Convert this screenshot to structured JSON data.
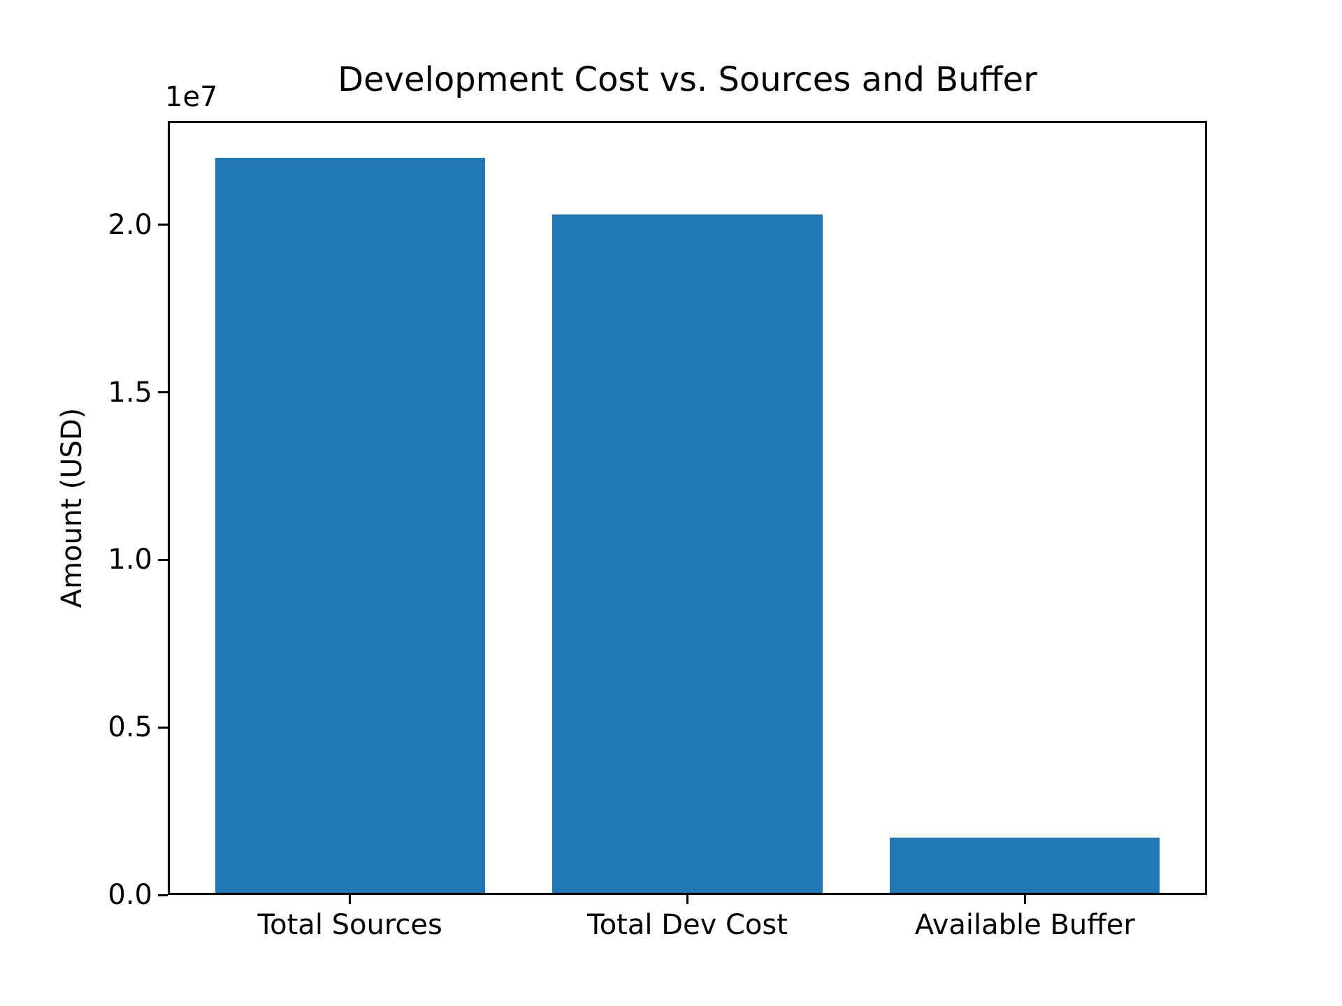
{
  "chart_data": {
    "type": "bar",
    "title": "Development Cost vs. Sources and Buffer",
    "xlabel": "",
    "ylabel": "Amount (USD)",
    "offset_text": "1e7",
    "categories": [
      "Total Sources",
      "Total Dev Cost",
      "Available Buffer"
    ],
    "values": [
      22000000,
      20300000,
      1700000
    ],
    "bar_color": "#1f77b4",
    "text_color": "#000000",
    "ylim": [
      0,
      23100000
    ],
    "yticks": [
      0,
      5000000,
      10000000,
      15000000,
      20000000
    ],
    "ytick_labels": [
      "0.0",
      "0.5",
      "1.0",
      "1.5",
      "2.0"
    ],
    "grid": false,
    "legend_position": "none"
  }
}
